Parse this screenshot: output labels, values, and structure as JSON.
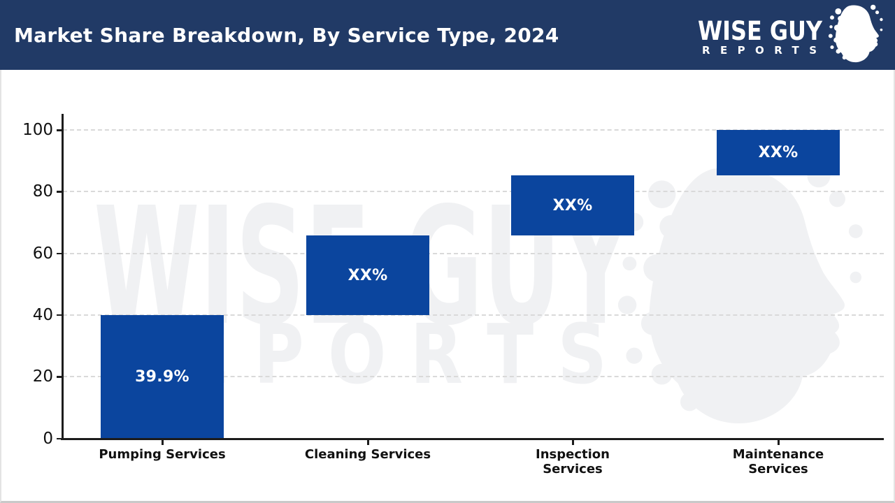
{
  "header": {
    "title": "Market Share Breakdown, By Service Type, 2024",
    "logo": {
      "line1": "WISE GUY",
      "line2": "REPORTS",
      "face_icon": "dotted-face-profile"
    }
  },
  "watermark": {
    "line1": "WISE GUY",
    "line2": "R E P O R T S",
    "face_icon": "dotted-face-profile"
  },
  "colors": {
    "header_bg": "#213a66",
    "bar": "#0b459e",
    "grid": "#d9d9d9",
    "axis": "#1c1c1c",
    "bar_label": "#ffffff",
    "watermark": "#f0f1f3"
  },
  "chart_data": {
    "type": "bar",
    "subtype": "waterfall",
    "title": "Market Share Breakdown, By Service Type, 2024",
    "categories": [
      "Pumping Services",
      "Cleaning Services",
      "Inspection\nServices",
      "Maintenance\nServices"
    ],
    "segments": [
      {
        "category": "Pumping Services",
        "start": 0,
        "end": 39.9,
        "label": "39.9%"
      },
      {
        "category": "Cleaning Services",
        "start": 39.9,
        "end": 65.8,
        "label": "XX%"
      },
      {
        "category": "Inspection Services",
        "start": 65.8,
        "end": 85.2,
        "label": "XX%"
      },
      {
        "category": "Maintenance Services",
        "start": 85.2,
        "end": 100,
        "label": "XX%"
      }
    ],
    "yticks": [
      0,
      20,
      40,
      60,
      80,
      100
    ],
    "ylim": [
      0,
      105
    ],
    "grid": "dashed-horizontal",
    "legend": false,
    "xlabel": "",
    "ylabel": ""
  }
}
